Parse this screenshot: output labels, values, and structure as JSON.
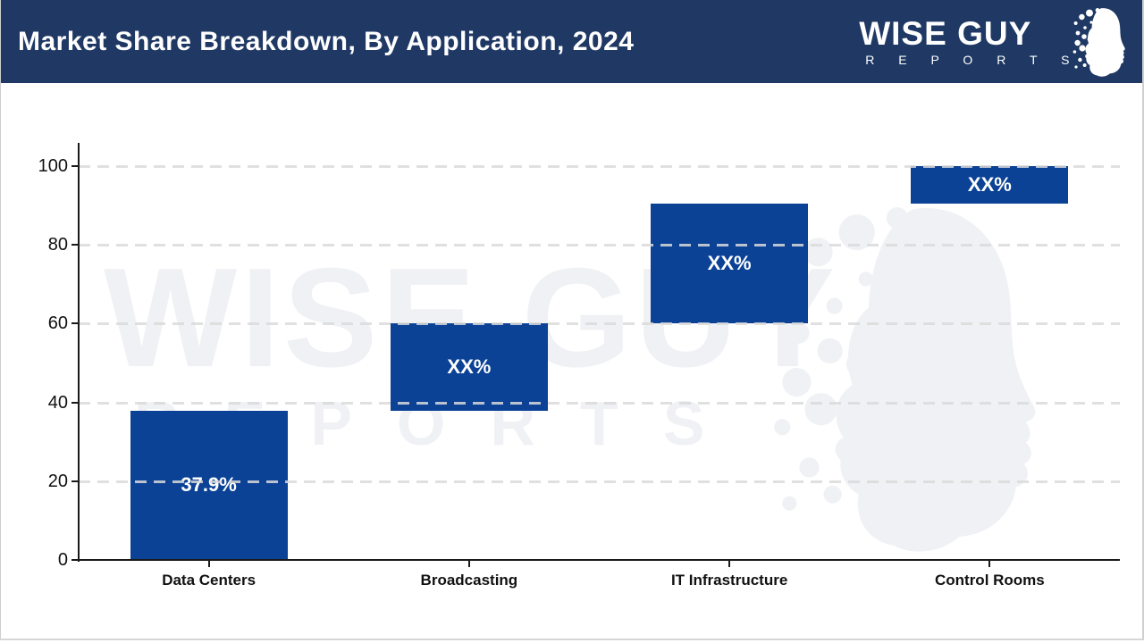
{
  "header": {
    "title": "Market Share Breakdown, By Application, 2024",
    "logo": {
      "line1": "WISE GUY",
      "line2": "R E P O R T S"
    }
  },
  "watermark": {
    "line1": "WISE GUY",
    "line2": "REPORTS"
  },
  "colors": {
    "header_bg": "#1f3864",
    "bar": "#0b4296",
    "bar_label": "#ffffff",
    "grid": "#dadada",
    "axis": "#1a1a1a",
    "watermark": "#f0f1f4",
    "title_text": "#ffffff"
  },
  "chart_data": {
    "type": "bar",
    "subtype": "waterfall",
    "title": "Market Share Breakdown, By Application, 2024",
    "categories": [
      "Data Centers",
      "Broadcasting",
      "IT Infrastructure",
      "Control Rooms"
    ],
    "bars": [
      {
        "category": "Data Centers",
        "start": 0,
        "end": 37.9,
        "label": "37.9%"
      },
      {
        "category": "Broadcasting",
        "start": 37.9,
        "end": 60,
        "label": "XX%"
      },
      {
        "category": "IT Infrastructure",
        "start": 60,
        "end": 90.5,
        "label": "XX%"
      },
      {
        "category": "Control Rooms",
        "start": 90.5,
        "end": 100,
        "label": "XX%"
      }
    ],
    "yticks": [
      0,
      20,
      40,
      60,
      80,
      100
    ],
    "ylim": [
      0,
      106
    ],
    "xlabel": "",
    "ylabel": "",
    "grid": "horizontal-dashed",
    "legend": "none",
    "bar_color": "#0b4296",
    "label_color": "#ffffff"
  }
}
